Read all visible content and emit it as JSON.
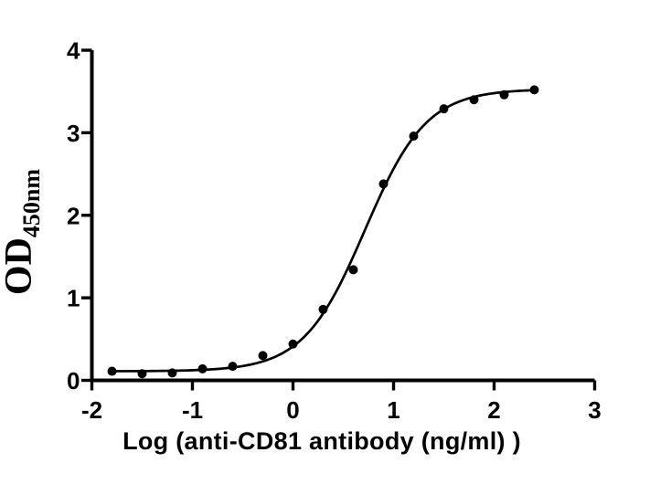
{
  "figure": {
    "background_color": "#ffffff",
    "ink_color": "#000000"
  },
  "chart_data": {
    "type": "scatter",
    "title": "",
    "grid": false,
    "legend": null,
    "x_axis": {
      "label": "Log (anti-CD81 antibody (ng/ml) )",
      "range": [
        -2,
        3
      ],
      "tick_values": [
        -2,
        -1,
        0,
        1,
        2,
        3
      ],
      "tick_labels": [
        "-2",
        "-1",
        "0",
        "1",
        "2",
        "3"
      ]
    },
    "y_axis": {
      "label_main": "OD",
      "label_sub": "450nm",
      "range": [
        0,
        4
      ],
      "tick_values": [
        0,
        1,
        2,
        3,
        4
      ],
      "tick_labels": [
        "0",
        "1",
        "2",
        "3",
        "4"
      ]
    },
    "series": [
      {
        "marker": "filled-circle",
        "color": "#000000",
        "x": [
          -1.8,
          -1.5,
          -1.2,
          -0.9,
          -0.6,
          -0.3,
          0,
          0.3,
          0.6,
          0.9,
          1.2,
          1.5,
          1.8,
          2.1,
          2.4
        ],
        "y": [
          0.11,
          0.08,
          0.09,
          0.14,
          0.17,
          0.3,
          0.44,
          0.86,
          1.34,
          2.38,
          2.96,
          3.29,
          3.4,
          3.46,
          3.52
        ]
      }
    ],
    "fit_curve": {
      "model": "4PL sigmoid",
      "bottom": 0.11,
      "top": 3.53,
      "log_ec50": 0.715,
      "hill_slope": 1.42,
      "x_start": -1.8,
      "x_end": 2.4
    }
  }
}
